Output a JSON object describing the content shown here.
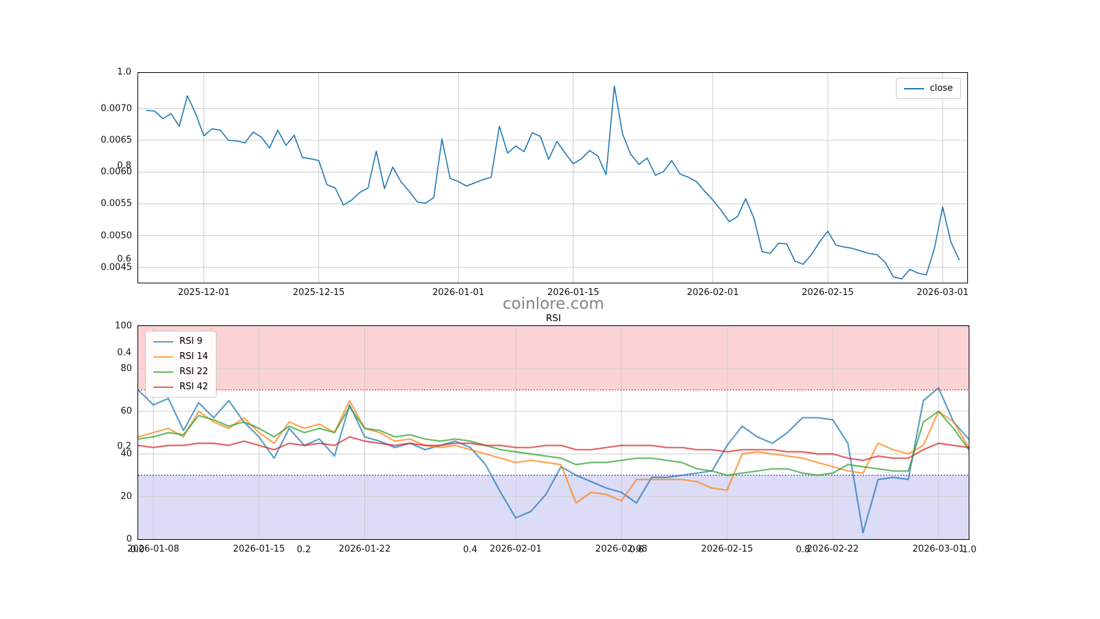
{
  "watermark": "coinlore.com",
  "stray_axis": {
    "yticks": [
      "1.0",
      "0.8",
      "0.6",
      "0.4",
      "0.2"
    ],
    "xticks": [
      "0.0",
      "0.2",
      "0.4",
      "0.6",
      "0.8",
      "1.0"
    ]
  },
  "chart_data": [
    {
      "type": "line",
      "name": "price-close",
      "title": "",
      "legend": [
        "close"
      ],
      "legend_position": "top-right",
      "grid": true,
      "xlim": [
        "2025-11-23",
        "2026-03-04"
      ],
      "ylim": [
        0.00426,
        0.00756
      ],
      "yticks": [
        0.0045,
        0.005,
        0.0055,
        0.006,
        0.0065,
        0.007
      ],
      "ytick_labels": [
        "0.0045",
        "0.0050",
        "0.0055",
        "0.0060",
        "0.0065",
        "0.0070"
      ],
      "xticks": [
        "2025-12-01",
        "2025-12-15",
        "2026-01-01",
        "2026-01-15",
        "2026-02-01",
        "2026-02-15",
        "2026-03-01"
      ],
      "xtick_labels": [
        "2025-12-01",
        "2025-12-15",
        "2026-01-01",
        "2026-01-15",
        "2026-02-01",
        "2026-02-15",
        "2026-03-01"
      ],
      "series": [
        {
          "name": "close",
          "color": "#1f77b4",
          "opacity": 1,
          "width": 1.6,
          "start": "2025-11-24",
          "values": [
            0.00697,
            0.00696,
            0.00684,
            0.00692,
            0.00672,
            0.0072,
            0.00692,
            0.00657,
            0.00668,
            0.00666,
            0.0065,
            0.00649,
            0.00646,
            0.00663,
            0.00655,
            0.00638,
            0.00666,
            0.00642,
            0.00658,
            0.00623,
            0.00621,
            0.00618,
            0.0058,
            0.00575,
            0.00548,
            0.00556,
            0.00568,
            0.00575,
            0.00633,
            0.00574,
            0.00608,
            0.00585,
            0.0057,
            0.00553,
            0.00551,
            0.0056,
            0.00652,
            0.0059,
            0.00585,
            0.00578,
            0.00583,
            0.00588,
            0.00592,
            0.00672,
            0.0063,
            0.00641,
            0.00632,
            0.00662,
            0.00656,
            0.0062,
            0.00648,
            0.0063,
            0.00613,
            0.00621,
            0.00634,
            0.00625,
            0.00596,
            0.00735,
            0.0066,
            0.00628,
            0.00612,
            0.00622,
            0.00595,
            0.00601,
            0.00618,
            0.00597,
            0.00592,
            0.00585,
            0.0057,
            0.00556,
            0.0054,
            0.00522,
            0.0053,
            0.00558,
            0.00528,
            0.00475,
            0.00472,
            0.00488,
            0.00487,
            0.0046,
            0.00455,
            0.0047,
            0.0049,
            0.00507,
            0.00485,
            0.00482,
            0.0048,
            0.00476,
            0.00472,
            0.0047,
            0.00458,
            0.00435,
            0.00432,
            0.00447,
            0.00441,
            0.00438,
            0.0048,
            0.00545,
            0.0049,
            0.00462
          ]
        }
      ]
    },
    {
      "type": "line",
      "name": "rsi",
      "title": "RSI",
      "legend": [
        "RSI 9",
        "RSI 14",
        "RSI 22",
        "RSI 42"
      ],
      "legend_position": "top-left",
      "grid": true,
      "xlim": [
        "2026-01-07",
        "2026-03-03"
      ],
      "ylim": [
        0,
        100
      ],
      "yticks": [
        0,
        20,
        40,
        60,
        80,
        100
      ],
      "ytick_labels": [
        "0",
        "20",
        "40",
        "60",
        "80",
        "100"
      ],
      "xticks": [
        "2026-01-08",
        "2026-01-15",
        "2026-01-22",
        "2026-02-01",
        "2026-02-08",
        "2026-02-15",
        "2026-02-22",
        "2026-03-01"
      ],
      "xtick_labels": [
        "2026-01-08",
        "2026-01-15",
        "2026-01-22",
        "2026-02-01",
        "2026-02-08",
        "2026-02-15",
        "2026-02-22",
        "2026-03-01"
      ],
      "bands": [
        {
          "from": 70,
          "to": 100,
          "color": "#fbd3d5",
          "meaning": "overbought"
        },
        {
          "from": 0,
          "to": 30,
          "color": "#dcdcf7",
          "meaning": "oversold"
        }
      ],
      "hlines": [
        {
          "y": 70,
          "color": "#dd0000",
          "style": "dotted"
        },
        {
          "y": 30,
          "color": "#0000cc",
          "style": "dotted"
        }
      ],
      "series": [
        {
          "name": "RSI 9",
          "color": "#1f77b4",
          "opacity": 0.72,
          "width": 2.2,
          "start": "2026-01-07",
          "values": [
            70,
            63,
            66,
            51,
            64,
            57,
            65,
            55,
            48,
            38,
            52,
            44,
            47,
            39,
            63,
            48,
            46,
            43,
            45,
            42,
            44,
            46,
            43,
            35,
            22,
            10,
            13,
            21,
            34,
            30,
            27,
            24,
            22,
            17,
            29,
            29,
            30,
            31,
            32,
            44,
            53,
            48,
            45,
            50,
            57,
            57,
            56,
            45,
            3,
            28,
            29,
            28,
            65,
            71,
            55,
            47
          ]
        },
        {
          "name": "RSI 14",
          "color": "#ff7f0e",
          "opacity": 0.72,
          "width": 2.2,
          "start": "2026-01-07",
          "values": [
            48,
            50,
            52,
            48,
            60,
            55,
            52,
            57,
            50,
            45,
            55,
            52,
            54,
            50,
            65,
            52,
            50,
            46,
            47,
            44,
            43,
            44,
            42,
            40,
            38,
            36,
            37,
            36,
            35,
            17,
            22,
            21,
            18,
            28,
            28,
            28,
            28,
            27,
            24,
            23,
            40,
            41,
            40,
            39,
            38,
            36,
            34,
            32,
            31,
            45,
            42,
            40,
            44,
            60,
            55,
            43
          ]
        },
        {
          "name": "RSI 22",
          "color": "#2ca02c",
          "opacity": 0.72,
          "width": 2.2,
          "start": "2026-01-07",
          "values": [
            47,
            48,
            50,
            49,
            58,
            56,
            53,
            55,
            52,
            48,
            53,
            50,
            52,
            50,
            62,
            52,
            51,
            48,
            49,
            47,
            46,
            47,
            46,
            44,
            42,
            41,
            40,
            39,
            38,
            35,
            36,
            36,
            37,
            38,
            38,
            37,
            36,
            33,
            32,
            30,
            31,
            32,
            33,
            33,
            31,
            30,
            31,
            35,
            34,
            33,
            32,
            32,
            55,
            60,
            52,
            42
          ]
        },
        {
          "name": "RSI 42",
          "color": "#d62728",
          "opacity": 0.72,
          "width": 2.2,
          "start": "2026-01-07",
          "values": [
            44,
            43,
            44,
            44,
            45,
            45,
            44,
            46,
            44,
            42,
            45,
            44,
            45,
            44,
            48,
            46,
            45,
            44,
            45,
            44,
            44,
            45,
            45,
            44,
            44,
            43,
            43,
            44,
            44,
            42,
            42,
            43,
            44,
            44,
            44,
            43,
            43,
            42,
            42,
            41,
            42,
            42,
            42,
            41,
            41,
            40,
            40,
            38,
            37,
            39,
            38,
            38,
            42,
            45,
            44,
            43
          ]
        }
      ]
    }
  ]
}
